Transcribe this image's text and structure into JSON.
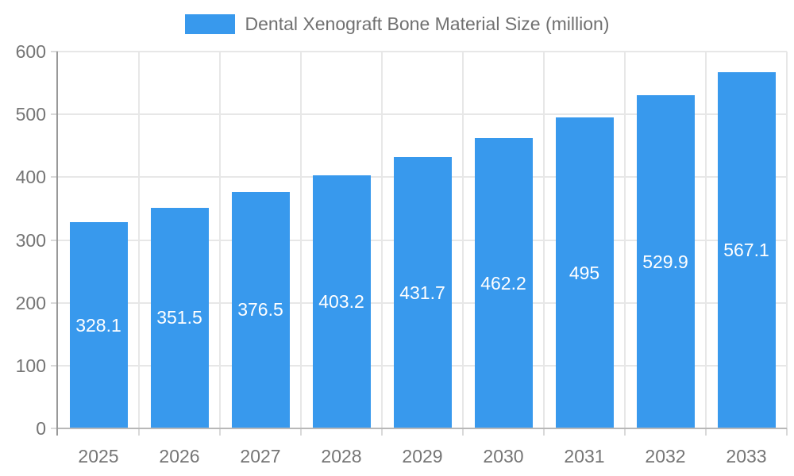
{
  "legend": {
    "label": "Dental Xenograft Bone Material Size (million)"
  },
  "chart_data": {
    "type": "bar",
    "title": "Dental Xenograft Bone Material Size (million)",
    "series_name": "Dental Xenograft Bone Material Size (million)",
    "categories": [
      "2025",
      "2026",
      "2027",
      "2028",
      "2029",
      "2030",
      "2031",
      "2032",
      "2033"
    ],
    "values": [
      328.1,
      351.5,
      376.5,
      403.2,
      431.7,
      462.2,
      495,
      529.9,
      567.1
    ],
    "xlabel": "",
    "ylabel": "",
    "ylim": [
      0,
      600
    ],
    "yticks": [
      0,
      100,
      200,
      300,
      400,
      500,
      600
    ],
    "grid": true,
    "legend_position": "top-center",
    "value_labels": "inside-center"
  },
  "colors": {
    "bar": "#3899ED",
    "axis_text": "#757575",
    "legend_text": "#707070",
    "value_label_text": "#ffffff",
    "gridline": "#e7e7e7",
    "tick_mark": "#d9d9d9",
    "axis_line_left": "#999999",
    "axis_line_bottom": "#b8b8b8",
    "background": "#ffffff"
  }
}
